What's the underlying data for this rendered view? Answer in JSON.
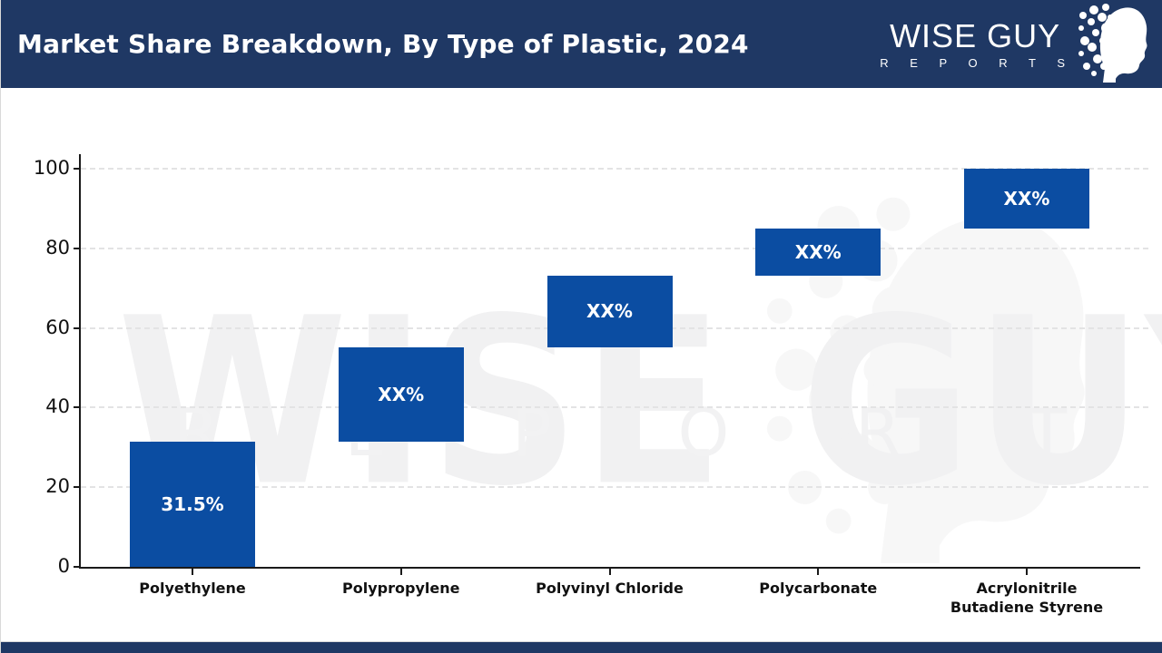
{
  "header": {
    "title": "Market Share Breakdown, By Type of Plastic, 2024",
    "brand": {
      "line1": "WISE GUY",
      "line2": "REPORTS"
    }
  },
  "watermark": {
    "line1": "WISE GUY",
    "line2": "REPORTS"
  },
  "colors": {
    "header_bg": "#1f3864",
    "footer_bg": "#1f3864",
    "bar": "#0b4da2",
    "bar_value_text": "#ffffff",
    "grid": "#e3e3e4",
    "axis": "#1a1a1a",
    "watermark": "#f1f1f2"
  },
  "chart_data": {
    "type": "bar",
    "subtype": "waterfall",
    "title": "Market Share Breakdown, By Type of Plastic, 2024",
    "xlabel": "",
    "ylabel": "",
    "ylim": [
      0,
      100
    ],
    "yticks": [
      0,
      20,
      40,
      60,
      80,
      100
    ],
    "grid": true,
    "legend": false,
    "categories": [
      "Polyethylene",
      "Polypropylene",
      "Polyvinyl Chloride",
      "Polycarbonate",
      "Acrylonitrile Butadiene Styrene"
    ],
    "segments": [
      {
        "label": "Polyethylene",
        "label_lines": [
          "Polyethylene"
        ],
        "start": 0,
        "end": 31.5,
        "value": 31.5,
        "value_label": "31.5%"
      },
      {
        "label": "Polypropylene",
        "label_lines": [
          "Polypropylene"
        ],
        "start": 31.5,
        "end": 55.2,
        "value": 23.7,
        "value_label": "XX%"
      },
      {
        "label": "Polyvinyl Chloride",
        "label_lines": [
          "Polyvinyl Chloride"
        ],
        "start": 55.2,
        "end": 73.2,
        "value": 18.0,
        "value_label": "XX%"
      },
      {
        "label": "Polycarbonate",
        "label_lines": [
          "Polycarbonate"
        ],
        "start": 73.2,
        "end": 85.0,
        "value": 11.8,
        "value_label": "XX%"
      },
      {
        "label": "Acrylonitrile Butadiene Styrene",
        "label_lines": [
          "Acrylonitrile",
          "Butadiene Styrene"
        ],
        "start": 85.0,
        "end": 100.0,
        "value": 15.0,
        "value_label": "XX%"
      }
    ]
  }
}
